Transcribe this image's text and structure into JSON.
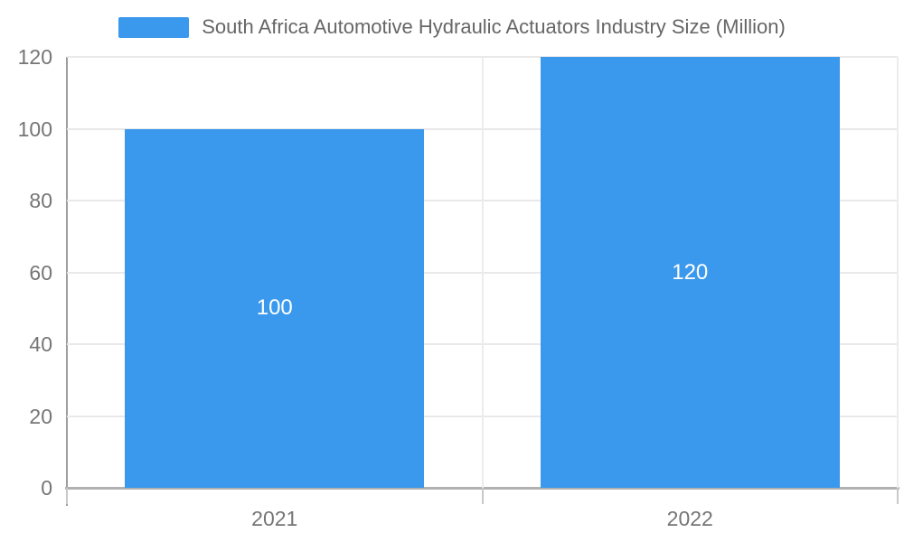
{
  "chart_data": {
    "type": "bar",
    "title": "",
    "legend": {
      "position": "top",
      "label": "South Africa Automotive Hydraulic Actuators Industry Size (Million)"
    },
    "categories": [
      "2021",
      "2022"
    ],
    "series": [
      {
        "name": "South Africa Automotive Hydraulic Actuators Industry Size (Million)",
        "values": [
          100,
          120
        ],
        "data_labels": [
          "100",
          "120"
        ]
      }
    ],
    "xlabel": "",
    "ylabel": "",
    "ylim": [
      0,
      120
    ],
    "yticks": [
      0,
      20,
      40,
      60,
      80,
      100,
      120
    ],
    "grid": true,
    "colors": {
      "bar": "#3a99ec",
      "bar_label_text": "#ffffff",
      "axis_text": "#757575",
      "legend_text": "#666666",
      "gridline": "#e9e9e9",
      "y_axis_line": "#9e9e9e",
      "x_axis_line": "#b1b1b1",
      "background": "#ffffff"
    }
  }
}
